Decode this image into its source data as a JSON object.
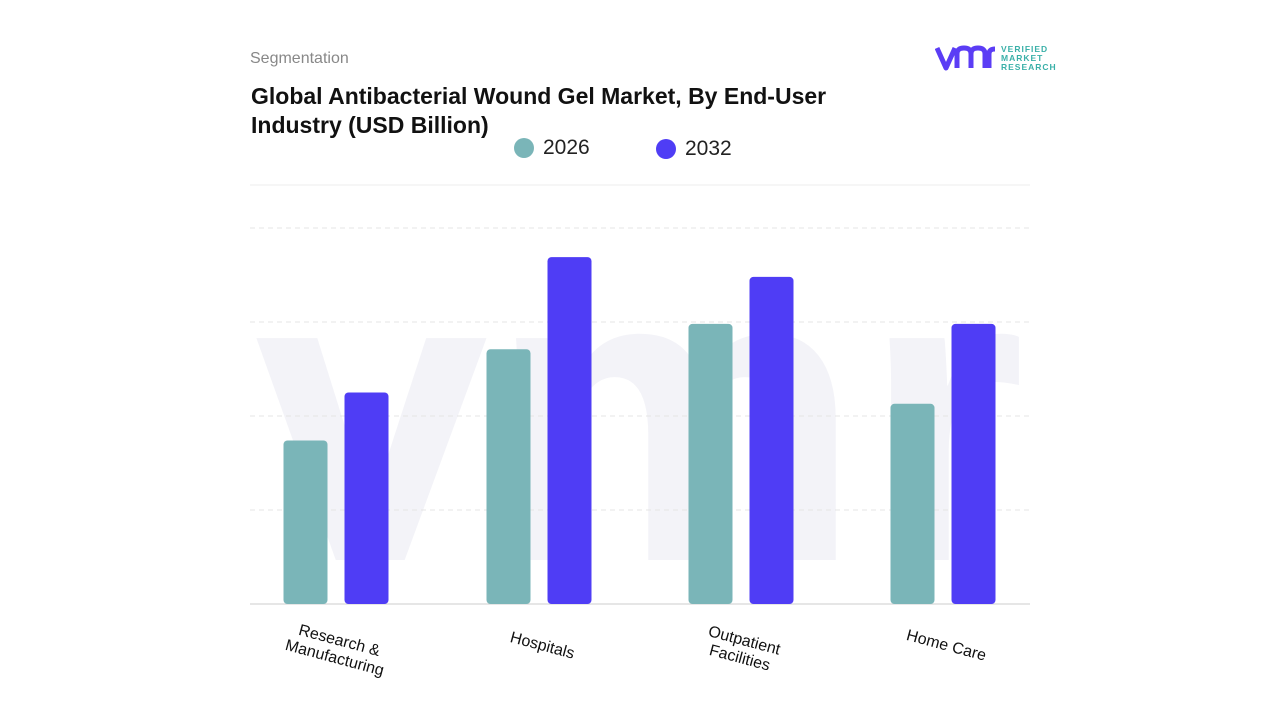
{
  "header": {
    "segment_label": "Segmentation",
    "title": "Global Antibacterial Wound Gel Market, By End-User Industry (USD Billion)"
  },
  "logo": {
    "line1": "VERIFIED",
    "line2": "MARKET",
    "line3": "RESEARCH",
    "mark": "vmr"
  },
  "chart_data": {
    "type": "bar",
    "categories": [
      "Research & Manufacturing",
      "Hospitals",
      "Outpatient Facilities",
      "Home Care"
    ],
    "series": [
      {
        "name": "2026",
        "color": "#7ab5b8",
        "values": [
          1.74,
          2.71,
          2.98,
          2.13
        ]
      },
      {
        "name": "2032",
        "color": "#4f3df5",
        "values": [
          2.25,
          3.69,
          3.48,
          2.98
        ]
      }
    ],
    "ylim": [
      0,
      4
    ],
    "grid": true,
    "legend_position": "top",
    "xlabel": "",
    "ylabel": ""
  }
}
